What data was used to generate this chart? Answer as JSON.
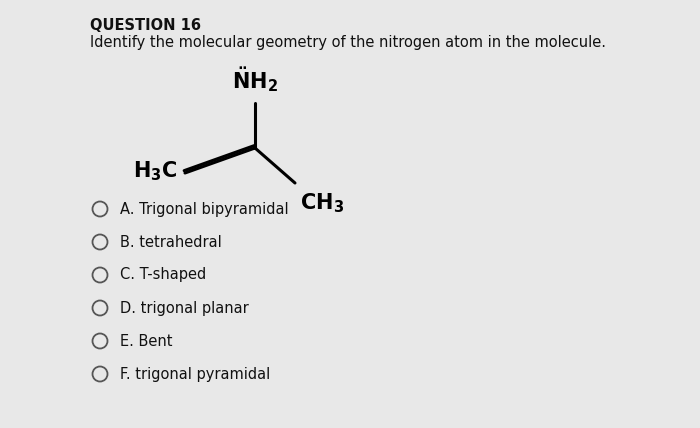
{
  "title": "QUESTION 16",
  "question": "Identify the molecular geometry of the nitrogen atom in the molecule.",
  "options": [
    "A. Trigonal bipyramidal",
    "B. tetrahedral",
    "C. T-shaped",
    "D. trigonal planar",
    "E. Bent",
    "F. trigonal pyramidal"
  ],
  "bg_color": "#e8e8e8",
  "text_color": "#111111",
  "title_fontsize": 10.5,
  "question_fontsize": 10.5,
  "option_fontsize": 10.5,
  "mol_fontsize": 15,
  "mol_sub_fontsize": 12
}
